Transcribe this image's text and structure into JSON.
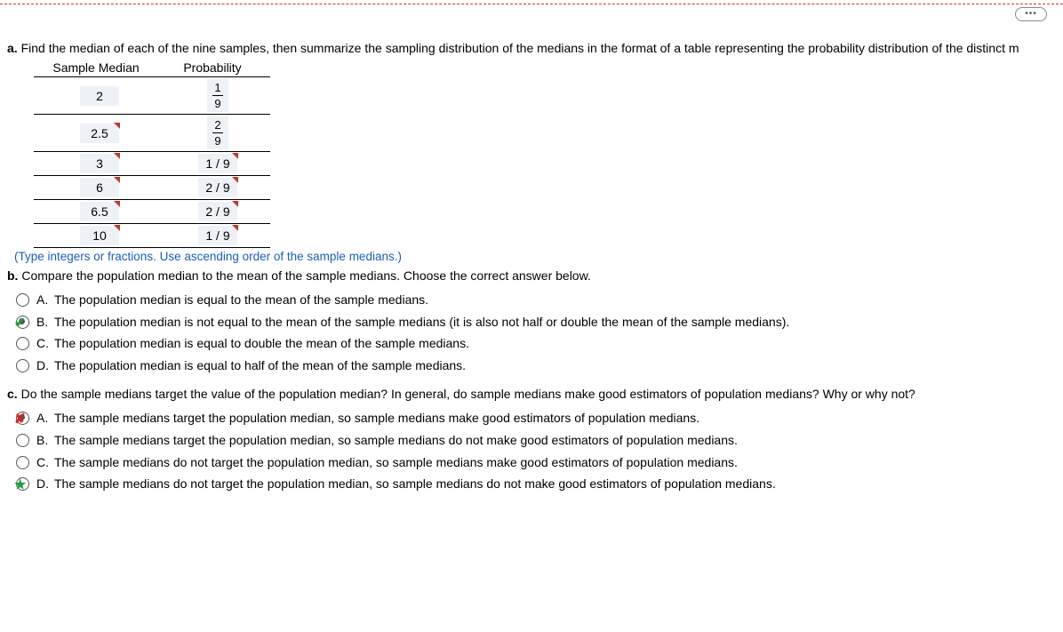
{
  "partA": {
    "label": "a.",
    "text": "Find the median of each of the nine samples, then summarize the sampling distribution of the medians in the format of a table representing the probability distribution of the distinct m",
    "header_median": "Sample Median",
    "header_prob": "Probability",
    "rows": [
      {
        "median": "2",
        "prob_num": "1",
        "prob_den": "9",
        "marked": false,
        "prob_type": "frac"
      },
      {
        "median": "2.5",
        "prob_num": "2",
        "prob_den": "9",
        "marked": true,
        "prob_type": "frac"
      },
      {
        "median": "3",
        "prob_text": "1 / 9",
        "marked": true,
        "prob_type": "text"
      },
      {
        "median": "6",
        "prob_text": "2 / 9",
        "marked": true,
        "prob_type": "text"
      },
      {
        "median": "6.5",
        "prob_text": "2 / 9",
        "marked": true,
        "prob_type": "text"
      },
      {
        "median": "10",
        "prob_text": "1 / 9",
        "marked": true,
        "prob_type": "text"
      }
    ],
    "instruction": "(Type integers or fractions. Use ascending order of the sample medians.)"
  },
  "partB": {
    "label": "b.",
    "text": "Compare the population median to the mean of the sample medians. Choose the correct answer below.",
    "options": [
      {
        "letter": "A.",
        "text": "The population median is equal to the mean of the sample medians.",
        "selected": false,
        "mark": ""
      },
      {
        "letter": "B.",
        "text": "The population median is not equal to the mean of the sample medians (it is also not half or double the mean of the sample medians).",
        "selected": true,
        "mark": "check"
      },
      {
        "letter": "C.",
        "text": "The population median is equal to double the mean of the sample medians.",
        "selected": false,
        "mark": ""
      },
      {
        "letter": "D.",
        "text": "The population median is equal to half of the mean of the sample medians.",
        "selected": false,
        "mark": ""
      }
    ]
  },
  "partC": {
    "label": "c.",
    "text": "Do the sample medians target the value of the population median? In general, do sample medians make good estimators of population medians? Why or why not?",
    "options": [
      {
        "letter": "A.",
        "text": "The sample medians target the population median, so sample medians make good estimators of population medians.",
        "selected": true,
        "mark": "x"
      },
      {
        "letter": "B.",
        "text": "The sample medians target the population median, so sample medians do not make good estimators of population medians.",
        "selected": false,
        "mark": ""
      },
      {
        "letter": "C.",
        "text": "The sample medians do not target the population median, so sample medians make good estimators of population medians.",
        "selected": false,
        "mark": ""
      },
      {
        "letter": "D.",
        "text": "The sample medians do not target the population median, so sample medians do not make good estimators of population medians.",
        "selected": false,
        "mark": "star"
      }
    ]
  },
  "colors": {
    "instruction": "#1a5fb4",
    "mark_red": "#d4232a",
    "mark_green": "#1a9e3e",
    "input_bg": "#eef2f6",
    "dash_color": "#c0392b"
  }
}
